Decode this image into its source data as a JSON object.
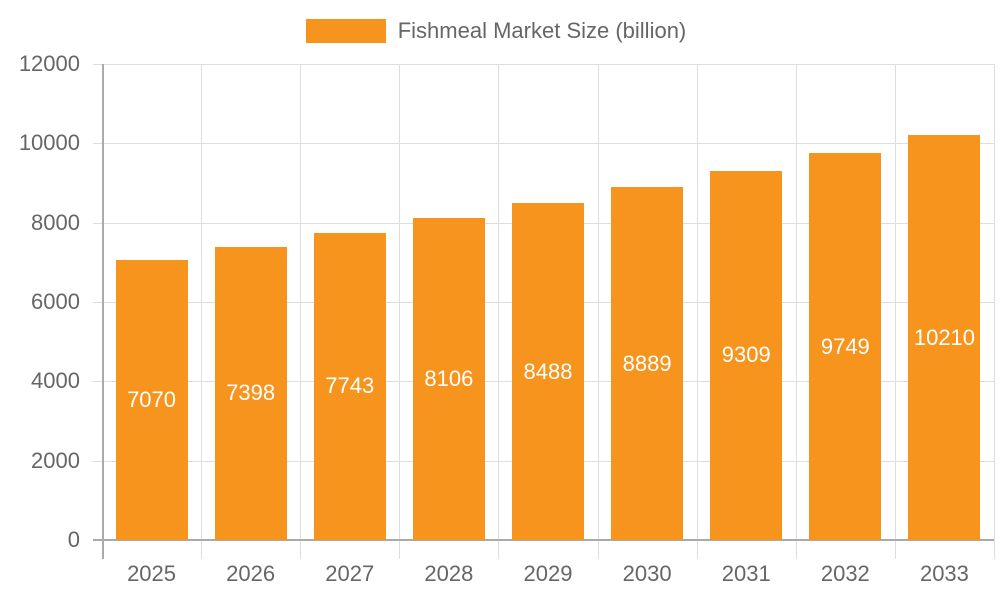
{
  "legend": {
    "label": "Fishmeal Market Size (billion)",
    "color": "#F7941D"
  },
  "chart_data": {
    "type": "bar",
    "title": "",
    "xlabel": "",
    "ylabel": "",
    "categories": [
      "2025",
      "2026",
      "2027",
      "2028",
      "2029",
      "2030",
      "2031",
      "2032",
      "2033"
    ],
    "series": [
      {
        "name": "Fishmeal Market Size (billion)",
        "color": "#F7941D",
        "values": [
          7070,
          7398,
          7743,
          8106,
          8488,
          8889,
          9309,
          9749,
          10210
        ]
      }
    ],
    "ylim": [
      0,
      12000
    ],
    "yticks": [
      "0",
      "2000",
      "4000",
      "6000",
      "8000",
      "10000",
      "12000"
    ],
    "grid": true,
    "legend_position": "top",
    "data_labels": true
  }
}
